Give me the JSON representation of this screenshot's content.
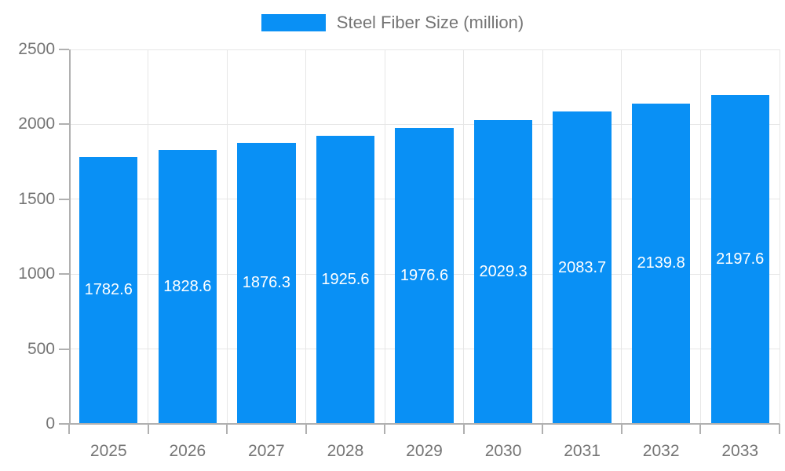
{
  "chart_data": {
    "type": "bar",
    "categories": [
      "2025",
      "2026",
      "2027",
      "2028",
      "2029",
      "2030",
      "2031",
      "2032",
      "2033"
    ],
    "series": [
      {
        "name": "Steel Fiber Size (million)",
        "values": [
          1782.6,
          1828.6,
          1876.3,
          1925.6,
          1976.6,
          2029.3,
          2083.7,
          2139.8,
          2197.6
        ],
        "labels": [
          "1782.6",
          "1828.6",
          "1876.3",
          "1925.6",
          "1976.6",
          "2029.3",
          "2083.7",
          "2139.8",
          "2197.6"
        ],
        "color": "#0990f5"
      }
    ],
    "title": "",
    "xlabel": "",
    "ylabel": "",
    "ylim": [
      0,
      2500
    ],
    "ytick_step": 500,
    "yticks": [
      "0",
      "500",
      "1000",
      "1500",
      "2000",
      "2500"
    ],
    "grid": true,
    "legend_position": "top",
    "value_labels_inside_bars": true,
    "colors": {
      "bar": "#0990f5",
      "grid": "#e6e6e6",
      "axis": "#b0b0b0",
      "tick_text": "#757575",
      "value_label": "#ffffff",
      "background": "#ffffff"
    }
  }
}
